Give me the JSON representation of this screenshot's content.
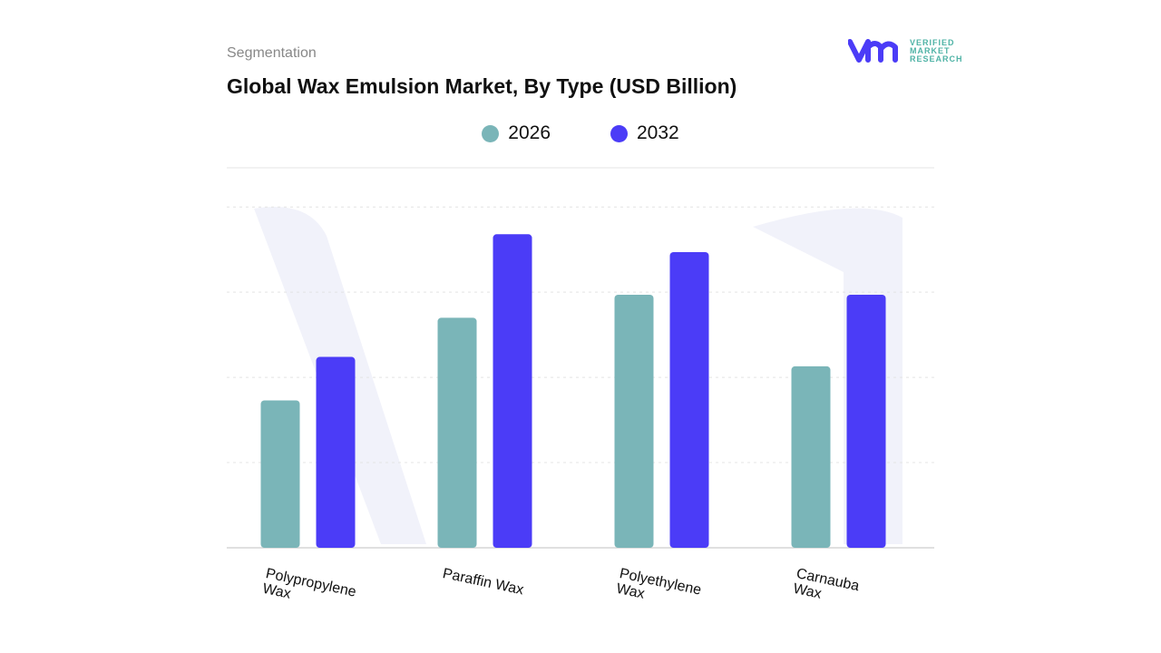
{
  "header": {
    "segment_label": "Segmentation",
    "title": "Global Wax Emulsion Market, By Type (USD Billion)"
  },
  "logo": {
    "mark": "vmr",
    "text_line1": "VERIFIED",
    "text_line2": "MARKET",
    "text_line3": "RESEARCH"
  },
  "chart_data": {
    "type": "bar",
    "title": "Global Wax Emulsion Market, By Type (USD Billion)",
    "categories": [
      "Polypropylene Wax",
      "Paraffin Wax",
      "Polyethylene Wax",
      "Carnauba Wax"
    ],
    "series": [
      {
        "name": "2026",
        "color": "#7ab5b8",
        "values": [
          1.73,
          2.7,
          2.97,
          2.13
        ]
      },
      {
        "name": "2032",
        "color": "#4b3cf7",
        "values": [
          2.24,
          3.68,
          3.47,
          2.97
        ]
      }
    ],
    "xlabel": "",
    "ylabel": "",
    "ylim": [
      0,
      4.46
    ],
    "grid": true,
    "legend": "top-center",
    "y_tick_labels_shown": false
  }
}
